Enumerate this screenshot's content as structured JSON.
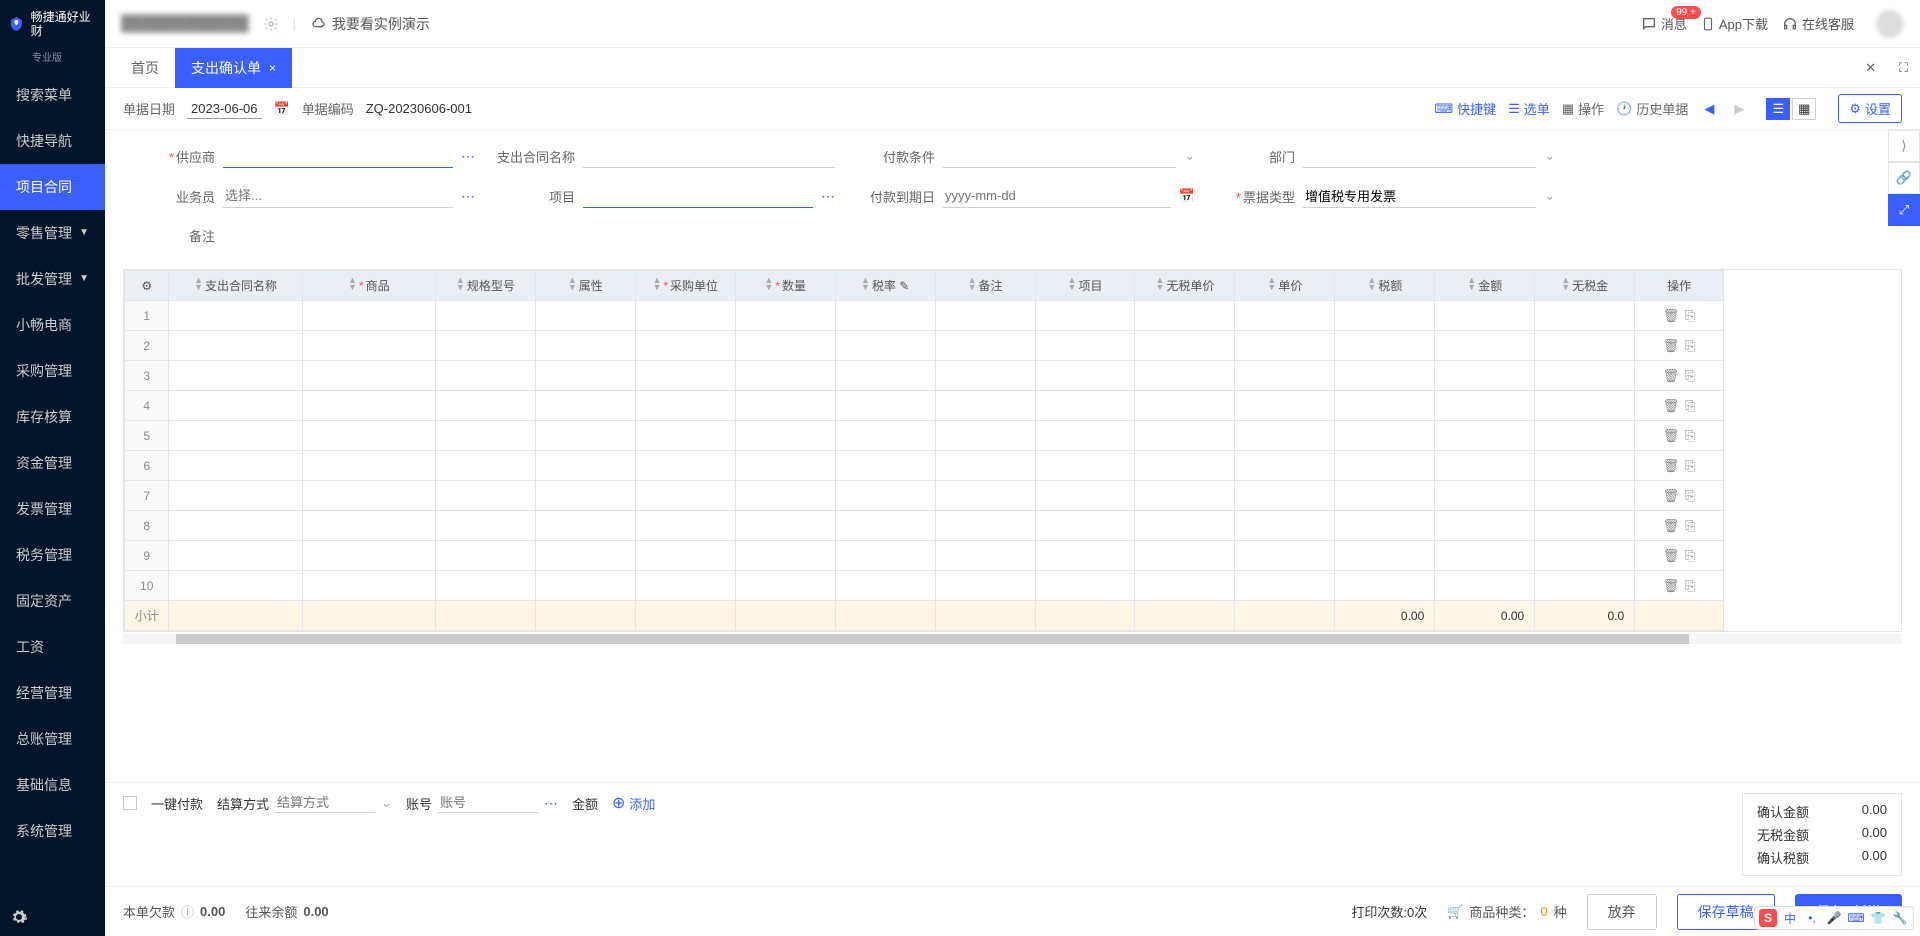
{
  "brand": {
    "name": "畅捷通好业财",
    "edition": "专业版"
  },
  "sidebar": {
    "items": [
      {
        "label": "搜索菜单"
      },
      {
        "label": "快捷导航"
      },
      {
        "label": "项目合同",
        "active": true
      },
      {
        "label": "零售管理",
        "caret": true
      },
      {
        "label": "批发管理",
        "caret": true
      },
      {
        "label": "小畅电商"
      },
      {
        "label": "采购管理"
      },
      {
        "label": "库存核算"
      },
      {
        "label": "资金管理"
      },
      {
        "label": "发票管理"
      },
      {
        "label": "税务管理"
      },
      {
        "label": "固定资产"
      },
      {
        "label": "工资"
      },
      {
        "label": "经营管理"
      },
      {
        "label": "总账管理"
      },
      {
        "label": "基础信息"
      },
      {
        "label": "系统管理"
      }
    ]
  },
  "topbar": {
    "org": "████████████",
    "demo": "我要看实例演示",
    "messages": "消息",
    "badge": "99 +",
    "app": "App下载",
    "service": "在线客服"
  },
  "tabs": {
    "home": "首页",
    "active": "支出确认单"
  },
  "doc": {
    "date_label": "单据日期",
    "date": "2023-06-06",
    "code_label": "单据编码",
    "code": "ZQ-20230606-001",
    "shortcut": "快捷键",
    "select": "选单",
    "operate": "操作",
    "history": "历史单据",
    "settings": "设置"
  },
  "form": {
    "supplier": "供应商",
    "contract_name": "支出合同名称",
    "pay_terms": "付款条件",
    "dept": "部门",
    "salesman": "业务员",
    "salesman_ph": "选择...",
    "project": "项目",
    "due_date": "付款到期日",
    "due_date_ph": "yyyy-mm-dd",
    "invoice_type": "票据类型",
    "invoice_type_val": "增值税专用发票",
    "remark": "备注"
  },
  "table": {
    "cols": [
      "支出合同名称",
      "商品",
      "规格型号",
      "属性",
      "采购单位",
      "数量",
      "税率",
      "备注",
      "项目",
      "无税单价",
      "单价",
      "税额",
      "金额",
      "无税金"
    ],
    "required": [
      false,
      true,
      false,
      false,
      true,
      true,
      false,
      false,
      false,
      false,
      false,
      false,
      false,
      false
    ],
    "ops": "操作",
    "rows": 10,
    "subtotal": "小计",
    "subtotal_vals": {
      "11": "0.00",
      "12": "0.00",
      "13": "0.0"
    }
  },
  "pay": {
    "oneclick": "一键付款",
    "settle": "结算方式",
    "settle_ph": "结算方式",
    "account": "账号",
    "account_ph": "账号",
    "amount": "金额",
    "add": "添加"
  },
  "totals": {
    "confirm_amt": "确认金额",
    "confirm_val": "0.00",
    "notax_amt": "无税金额",
    "notax_val": "0.00",
    "tax_amt": "确认税额",
    "tax_val": "0.00"
  },
  "footer": {
    "this_debt": "本单欠款",
    "this_debt_val": "0.00",
    "bal": "往来余额",
    "bal_val": "0.00",
    "print": "打印次数:0次",
    "sku_label": "商品种类：",
    "sku_val": "0",
    "sku_unit": " 种",
    "abandon": "放弃",
    "save_draft": "保存草稿",
    "save_new": "保存&新增"
  },
  "colors": {
    "primary": "#3b5fff",
    "sidebar_bg": "#001529",
    "header_bg": "#eaeef5",
    "subtotal_bg": "#fdf5e6",
    "danger": "#ff4d4f"
  }
}
